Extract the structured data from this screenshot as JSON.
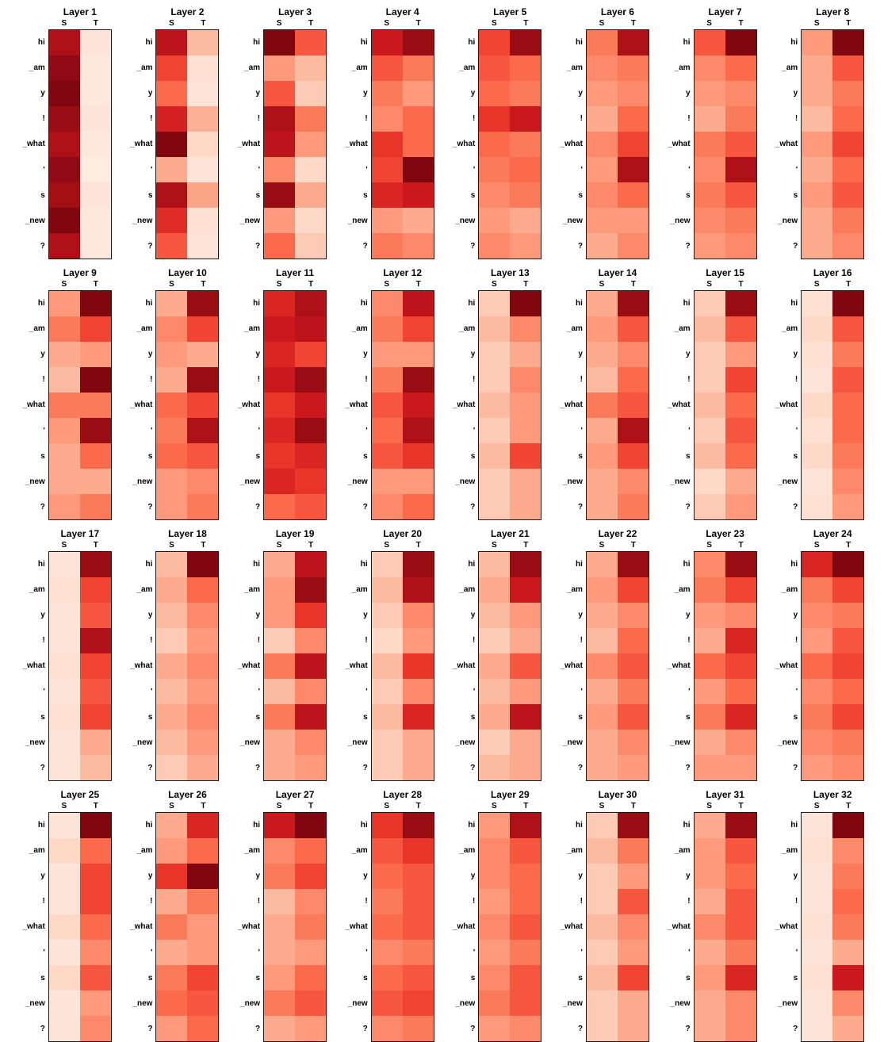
{
  "figure": {
    "background": "#ffffff",
    "grid_columns": 8,
    "grid_rows": 4
  },
  "chart_data": {
    "type": "heatmap",
    "colormap": "Reds",
    "colormap_anchors": [
      "#fff5f0",
      "#fee0d2",
      "#fcbba1",
      "#fc9272",
      "#fb6a4a",
      "#ef3b2c",
      "#cb181d",
      "#a50f15",
      "#67000d"
    ],
    "value_range": [
      0,
      1
    ],
    "columns": [
      "S",
      "T"
    ],
    "rows": [
      "hi",
      "_am",
      "y",
      "!",
      "_what",
      "'",
      "s",
      "_new",
      "?"
    ],
    "panels": [
      {
        "title": "Layer 1",
        "S": [
          0.85,
          0.92,
          0.95,
          0.9,
          0.85,
          0.92,
          0.88,
          0.95,
          0.85
        ],
        "T": [
          0.1,
          0.08,
          0.08,
          0.1,
          0.08,
          0.06,
          0.1,
          0.08,
          0.08
        ]
      },
      {
        "title": "Layer 2",
        "S": [
          0.8,
          0.6,
          0.5,
          0.72,
          0.95,
          0.3,
          0.85,
          0.68,
          0.55
        ],
        "T": [
          0.25,
          0.12,
          0.1,
          0.28,
          0.15,
          0.1,
          0.32,
          0.12,
          0.1
        ]
      },
      {
        "title": "Layer 3",
        "S": [
          0.95,
          0.35,
          0.55,
          0.85,
          0.8,
          0.4,
          0.9,
          0.35,
          0.5
        ],
        "T": [
          0.55,
          0.25,
          0.2,
          0.45,
          0.35,
          0.15,
          0.3,
          0.15,
          0.2
        ]
      },
      {
        "title": "Layer 4",
        "S": [
          0.75,
          0.55,
          0.45,
          0.4,
          0.65,
          0.6,
          0.7,
          0.35,
          0.45
        ],
        "T": [
          0.9,
          0.45,
          0.35,
          0.5,
          0.5,
          0.95,
          0.75,
          0.3,
          0.4
        ]
      },
      {
        "title": "Layer 5",
        "S": [
          0.6,
          0.55,
          0.5,
          0.65,
          0.5,
          0.45,
          0.4,
          0.35,
          0.4
        ],
        "T": [
          0.9,
          0.5,
          0.45,
          0.75,
          0.45,
          0.5,
          0.45,
          0.3,
          0.35
        ]
      },
      {
        "title": "Layer 6",
        "S": [
          0.45,
          0.4,
          0.35,
          0.3,
          0.4,
          0.35,
          0.4,
          0.35,
          0.3
        ],
        "T": [
          0.85,
          0.45,
          0.4,
          0.5,
          0.6,
          0.85,
          0.5,
          0.35,
          0.4
        ]
      },
      {
        "title": "Layer 7",
        "S": [
          0.55,
          0.4,
          0.35,
          0.3,
          0.45,
          0.4,
          0.45,
          0.4,
          0.35
        ],
        "T": [
          0.95,
          0.5,
          0.4,
          0.45,
          0.55,
          0.85,
          0.55,
          0.45,
          0.4
        ]
      },
      {
        "title": "Layer 8",
        "S": [
          0.35,
          0.3,
          0.3,
          0.25,
          0.35,
          0.3,
          0.35,
          0.3,
          0.3
        ],
        "T": [
          0.95,
          0.55,
          0.45,
          0.5,
          0.6,
          0.5,
          0.55,
          0.45,
          0.4
        ]
      },
      {
        "title": "Layer 9",
        "S": [
          0.35,
          0.45,
          0.3,
          0.25,
          0.45,
          0.35,
          0.3,
          0.3,
          0.35
        ],
        "T": [
          0.95,
          0.6,
          0.35,
          0.95,
          0.45,
          0.9,
          0.5,
          0.3,
          0.45
        ]
      },
      {
        "title": "Layer 10",
        "S": [
          0.3,
          0.4,
          0.35,
          0.3,
          0.5,
          0.45,
          0.5,
          0.35,
          0.35
        ],
        "T": [
          0.9,
          0.6,
          0.3,
          0.9,
          0.6,
          0.85,
          0.55,
          0.4,
          0.45
        ]
      },
      {
        "title": "Layer 11",
        "S": [
          0.7,
          0.75,
          0.7,
          0.75,
          0.65,
          0.7,
          0.65,
          0.7,
          0.5
        ],
        "T": [
          0.85,
          0.8,
          0.6,
          0.9,
          0.75,
          0.9,
          0.7,
          0.65,
          0.55
        ]
      },
      {
        "title": "Layer 12",
        "S": [
          0.4,
          0.45,
          0.35,
          0.45,
          0.55,
          0.5,
          0.55,
          0.35,
          0.4
        ],
        "T": [
          0.8,
          0.6,
          0.35,
          0.9,
          0.75,
          0.85,
          0.65,
          0.35,
          0.5
        ]
      },
      {
        "title": "Layer 13",
        "S": [
          0.2,
          0.25,
          0.2,
          0.2,
          0.25,
          0.2,
          0.25,
          0.2,
          0.2
        ],
        "T": [
          0.95,
          0.4,
          0.3,
          0.4,
          0.35,
          0.35,
          0.6,
          0.3,
          0.3
        ]
      },
      {
        "title": "Layer 14",
        "S": [
          0.3,
          0.35,
          0.3,
          0.25,
          0.45,
          0.3,
          0.35,
          0.3,
          0.3
        ],
        "T": [
          0.9,
          0.55,
          0.4,
          0.5,
          0.55,
          0.85,
          0.6,
          0.4,
          0.45
        ]
      },
      {
        "title": "Layer 15",
        "S": [
          0.2,
          0.25,
          0.2,
          0.2,
          0.25,
          0.2,
          0.25,
          0.15,
          0.2
        ],
        "T": [
          0.9,
          0.55,
          0.35,
          0.6,
          0.5,
          0.55,
          0.5,
          0.3,
          0.35
        ]
      },
      {
        "title": "Layer 16",
        "S": [
          0.12,
          0.15,
          0.12,
          0.1,
          0.15,
          0.12,
          0.15,
          0.1,
          0.12
        ],
        "T": [
          0.95,
          0.55,
          0.45,
          0.55,
          0.5,
          0.5,
          0.45,
          0.4,
          0.35
        ]
      },
      {
        "title": "Layer 17",
        "S": [
          0.1,
          0.12,
          0.1,
          0.1,
          0.12,
          0.1,
          0.12,
          0.1,
          0.1
        ],
        "T": [
          0.9,
          0.6,
          0.55,
          0.85,
          0.6,
          0.55,
          0.6,
          0.3,
          0.25
        ]
      },
      {
        "title": "Layer 18",
        "S": [
          0.25,
          0.3,
          0.25,
          0.2,
          0.3,
          0.25,
          0.3,
          0.25,
          0.2
        ],
        "T": [
          0.95,
          0.5,
          0.4,
          0.35,
          0.4,
          0.35,
          0.4,
          0.35,
          0.3
        ]
      },
      {
        "title": "Layer 19",
        "S": [
          0.3,
          0.35,
          0.35,
          0.2,
          0.45,
          0.25,
          0.45,
          0.3,
          0.3
        ],
        "T": [
          0.8,
          0.9,
          0.65,
          0.4,
          0.8,
          0.4,
          0.8,
          0.4,
          0.35
        ]
      },
      {
        "title": "Layer 20",
        "S": [
          0.2,
          0.25,
          0.2,
          0.15,
          0.25,
          0.2,
          0.25,
          0.2,
          0.2
        ],
        "T": [
          0.9,
          0.85,
          0.4,
          0.35,
          0.65,
          0.4,
          0.7,
          0.3,
          0.3
        ]
      },
      {
        "title": "Layer 21",
        "S": [
          0.25,
          0.3,
          0.25,
          0.2,
          0.3,
          0.25,
          0.3,
          0.2,
          0.25
        ],
        "T": [
          0.9,
          0.75,
          0.35,
          0.3,
          0.55,
          0.35,
          0.8,
          0.3,
          0.3
        ]
      },
      {
        "title": "Layer 22",
        "S": [
          0.3,
          0.35,
          0.3,
          0.25,
          0.4,
          0.3,
          0.35,
          0.3,
          0.3
        ],
        "T": [
          0.9,
          0.6,
          0.4,
          0.5,
          0.55,
          0.45,
          0.55,
          0.4,
          0.35
        ]
      },
      {
        "title": "Layer 23",
        "S": [
          0.4,
          0.45,
          0.35,
          0.3,
          0.5,
          0.35,
          0.45,
          0.3,
          0.35
        ],
        "T": [
          0.9,
          0.6,
          0.4,
          0.7,
          0.6,
          0.5,
          0.7,
          0.4,
          0.35
        ]
      },
      {
        "title": "Layer 24",
        "S": [
          0.7,
          0.45,
          0.4,
          0.35,
          0.5,
          0.4,
          0.45,
          0.4,
          0.35
        ],
        "T": [
          0.95,
          0.6,
          0.45,
          0.55,
          0.6,
          0.5,
          0.6,
          0.45,
          0.4
        ]
      },
      {
        "title": "Layer 25",
        "S": [
          0.1,
          0.15,
          0.1,
          0.1,
          0.15,
          0.1,
          0.15,
          0.1,
          0.1
        ],
        "T": [
          0.95,
          0.5,
          0.6,
          0.6,
          0.5,
          0.4,
          0.55,
          0.35,
          0.4
        ]
      },
      {
        "title": "Layer 26",
        "S": [
          0.3,
          0.35,
          0.65,
          0.3,
          0.45,
          0.3,
          0.45,
          0.5,
          0.35
        ],
        "T": [
          0.7,
          0.5,
          0.95,
          0.45,
          0.35,
          0.35,
          0.6,
          0.55,
          0.5
        ]
      },
      {
        "title": "Layer 27",
        "S": [
          0.75,
          0.4,
          0.45,
          0.25,
          0.3,
          0.3,
          0.35,
          0.45,
          0.3
        ],
        "T": [
          0.95,
          0.5,
          0.6,
          0.4,
          0.45,
          0.35,
          0.5,
          0.55,
          0.35
        ]
      },
      {
        "title": "Layer 28",
        "S": [
          0.65,
          0.55,
          0.5,
          0.45,
          0.5,
          0.4,
          0.5,
          0.55,
          0.4
        ],
        "T": [
          0.9,
          0.65,
          0.55,
          0.55,
          0.55,
          0.45,
          0.55,
          0.6,
          0.45
        ]
      },
      {
        "title": "Layer 29",
        "S": [
          0.35,
          0.4,
          0.4,
          0.35,
          0.4,
          0.35,
          0.4,
          0.45,
          0.35
        ],
        "T": [
          0.85,
          0.55,
          0.5,
          0.5,
          0.55,
          0.45,
          0.55,
          0.55,
          0.4
        ]
      },
      {
        "title": "Layer 30",
        "S": [
          0.2,
          0.25,
          0.2,
          0.2,
          0.25,
          0.2,
          0.25,
          0.2,
          0.2
        ],
        "T": [
          0.9,
          0.45,
          0.35,
          0.55,
          0.4,
          0.35,
          0.6,
          0.3,
          0.3
        ]
      },
      {
        "title": "Layer 31",
        "S": [
          0.3,
          0.35,
          0.35,
          0.3,
          0.4,
          0.3,
          0.35,
          0.3,
          0.3
        ],
        "T": [
          0.9,
          0.55,
          0.5,
          0.55,
          0.55,
          0.45,
          0.7,
          0.4,
          0.4
        ]
      },
      {
        "title": "Layer 32",
        "S": [
          0.1,
          0.12,
          0.1,
          0.1,
          0.12,
          0.1,
          0.12,
          0.1,
          0.1
        ],
        "T": [
          0.95,
          0.4,
          0.45,
          0.5,
          0.45,
          0.3,
          0.75,
          0.4,
          0.3
        ]
      }
    ]
  }
}
